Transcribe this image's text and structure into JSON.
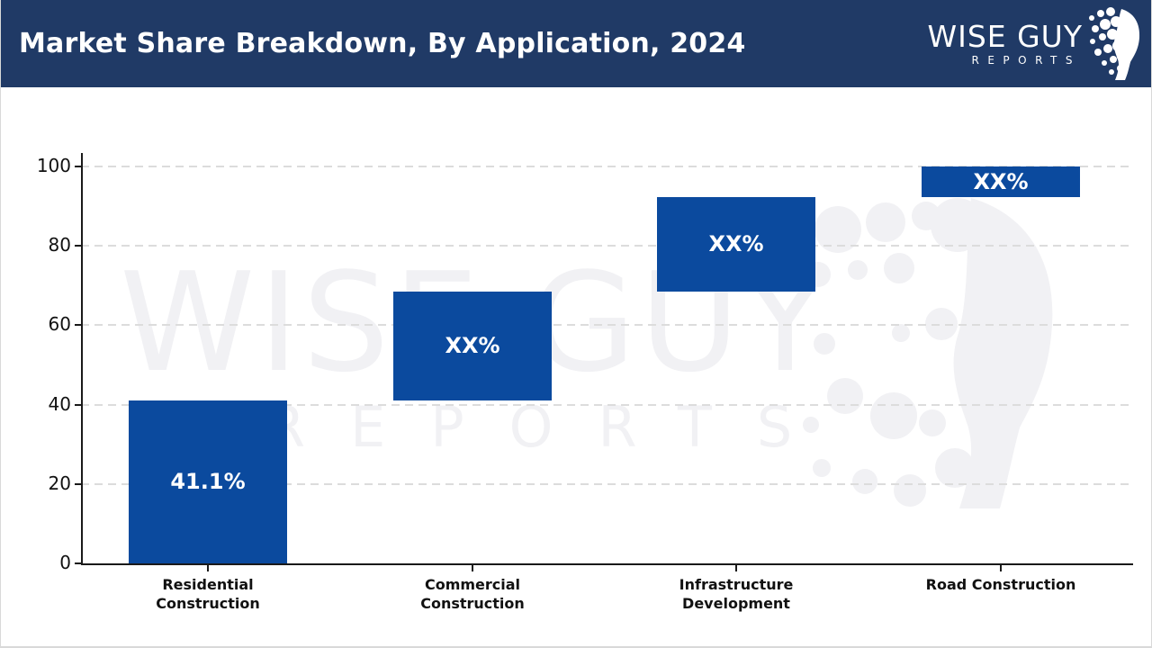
{
  "header": {
    "title": "Market Share Breakdown, By Application, 2024",
    "logo": {
      "line1": "WISE GUY",
      "line2": "REPORTS"
    }
  },
  "watermark": {
    "line1": "WISE GUY",
    "line2": "REPORTS"
  },
  "chart_data": {
    "type": "bar",
    "subtype": "waterfall",
    "title": "Market Share Breakdown, By Application, 2024",
    "categories": [
      "Residential Construction",
      "Commercial Construction",
      "Infrastructure Development",
      "Road Construction"
    ],
    "category_lines": [
      [
        "Residential",
        "Construction"
      ],
      [
        "Commercial",
        "Construction"
      ],
      [
        "Infrastructure",
        "Development"
      ],
      [
        "Road Construction"
      ]
    ],
    "segments": [
      {
        "category": "Residential Construction",
        "start": 0,
        "end": 41.1,
        "label": "41.1%"
      },
      {
        "category": "Commercial Construction",
        "start": 41.1,
        "end": 68.5,
        "label": "XX%"
      },
      {
        "category": "Infrastructure Development",
        "start": 68.5,
        "end": 92.3,
        "label": "XX%"
      },
      {
        "category": "Road Construction",
        "start": 92.3,
        "end": 100,
        "label": "XX%"
      }
    ],
    "yticks": [
      0,
      20,
      40,
      60,
      80,
      100
    ],
    "ylim": [
      0,
      105
    ],
    "xlabel": "",
    "ylabel": "",
    "grid": "horizontal-dashed",
    "legend": "none",
    "bar_color": "#0b4a9e",
    "bar_label_color": "#ffffff"
  },
  "colors": {
    "header_bg": "#203a66",
    "bar": "#0b4a9e",
    "grid": "#dcdcdc",
    "axis": "#1a1a1a",
    "watermark": "#f1f1f4",
    "page_bg": "#ffffff",
    "border": "#d9d9d9"
  }
}
